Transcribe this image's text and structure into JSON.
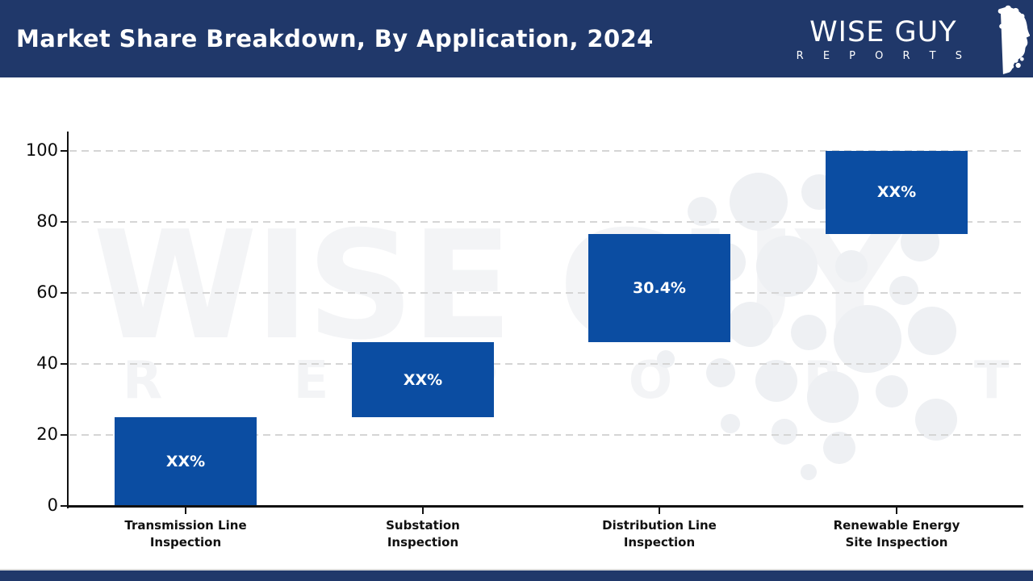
{
  "header": {
    "title": "Market Share Breakdown, By Application, 2024",
    "logo_line1": "WISE GUY",
    "logo_line2": "R E P O R T S"
  },
  "watermark": {
    "line1": "WISE GUY",
    "line2": "R E P O R T S"
  },
  "chart_data": {
    "type": "bar",
    "subtype": "floating-segment-waterfall",
    "title": "Market Share Breakdown, By Application, 2024",
    "categories": [
      "Transmission Line\nInspection",
      "Substation\nInspection",
      "Distribution Line\nInspection",
      "Renewable Energy\nSite Inspection"
    ],
    "segments": [
      {
        "category": "Transmission Line Inspection",
        "label": "XX%",
        "from": 0,
        "to": 25
      },
      {
        "category": "Substation Inspection",
        "label": "XX%",
        "from": 25,
        "to": 46.1
      },
      {
        "category": "Distribution Line Inspection",
        "label": "30.4%",
        "from": 46.2,
        "to": 76.6
      },
      {
        "category": "Renewable Energy Site Inspection",
        "label": "XX%",
        "from": 76.6,
        "to": 100
      }
    ],
    "xlabel": "",
    "ylabel": "",
    "ylim": [
      0,
      100
    ],
    "yticks": [
      0,
      20,
      40,
      60,
      80,
      100
    ],
    "grid": "horizontal-dashed",
    "legend": "none"
  },
  "colors": {
    "header_bg": "#20386a",
    "footer_bg": "#20386a",
    "bar": "#0b4da2",
    "bar_label": "#ffffff",
    "grid": "#d5d5d5",
    "axis": "#111111",
    "watermark": "#f3f4f6"
  }
}
